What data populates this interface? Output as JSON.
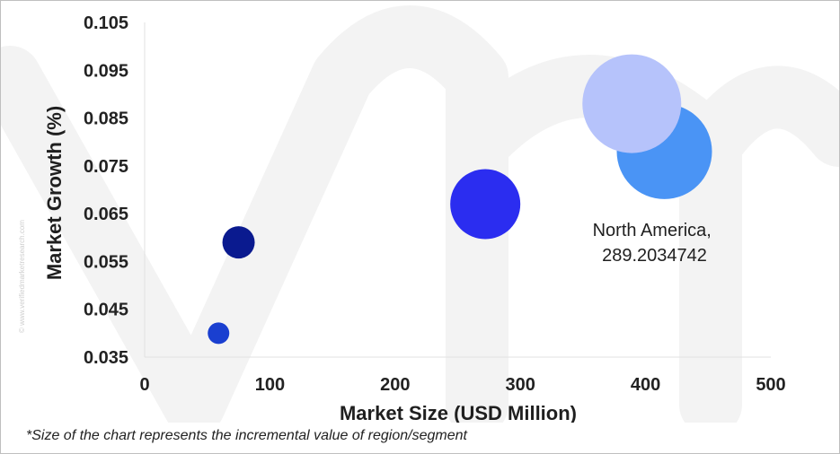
{
  "chart_data": {
    "type": "scatter",
    "variant": "bubble",
    "xlabel": "Market Size (USD Million)",
    "ylabel": "Market Growth (%)",
    "xlim": [
      0,
      500
    ],
    "ylim": [
      0.035,
      0.105
    ],
    "x_ticks": [
      "0",
      "100",
      "200",
      "300",
      "400",
      "500"
    ],
    "y_ticks": [
      "0.035",
      "0.045",
      "0.055",
      "0.065",
      "0.075",
      "0.085",
      "0.095",
      "0.105"
    ],
    "x_tick_values": [
      0,
      100,
      200,
      300,
      400,
      500
    ],
    "y_tick_values": [
      0.035,
      0.045,
      0.055,
      0.065,
      0.075,
      0.085,
      0.095,
      0.105
    ],
    "grid": false,
    "legend": "none",
    "points": [
      {
        "x": 59,
        "y": 0.04,
        "size": 12,
        "color": "#1a3fd0"
      },
      {
        "x": 75,
        "y": 0.059,
        "size": 18,
        "color": "#0a1a8f"
      },
      {
        "x": 272,
        "y": 0.067,
        "size": 39,
        "color": "#2b2df0"
      },
      {
        "x": 415,
        "y": 0.078,
        "size": 53,
        "color": "#4a94f5",
        "label": "North America,\n289.2034742"
      },
      {
        "x": 389,
        "y": 0.088,
        "size": 55,
        "color": "#b6c3fb"
      }
    ],
    "data_label": {
      "line1": "North America,",
      "line2": "289.2034742"
    }
  },
  "watermark": {
    "text": "© www.verifiedmarketresearch.com"
  },
  "footnote": "*Size of the chart represents the incremental value of region/segment"
}
